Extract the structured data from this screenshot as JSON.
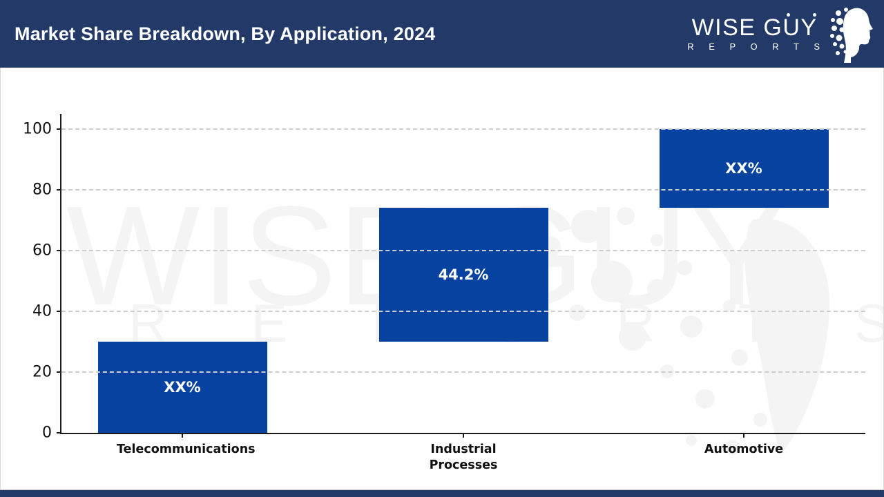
{
  "header": {
    "title": "Market Share Breakdown, By Application, 2024",
    "logo": {
      "primary": "WISE GUY",
      "secondary": "R E P O R T S"
    }
  },
  "watermark": {
    "primary": "WISE GUY",
    "secondary": "R E P O R T S"
  },
  "colors": {
    "header_bg": "#233a68",
    "footer_bg": "#233a68",
    "bar": "#0643a0",
    "grid": "#cdcdcd",
    "axis": "#1a1a1a",
    "value_label": "#ffffff",
    "watermark": "#f4f4f4"
  },
  "chart_data": {
    "type": "bar",
    "subtype": "floating-segment-waterfall",
    "title": "Market Share Breakdown, By Application, 2024",
    "categories": [
      "Telecommunications",
      "Industrial Processes",
      "Automotive"
    ],
    "segments": [
      {
        "category": "Telecommunications",
        "start": 0,
        "end": 30,
        "label": "XX%"
      },
      {
        "category": "Industrial Processes",
        "start": 30,
        "end": 74.2,
        "label": "44.2%"
      },
      {
        "category": "Automotive",
        "start": 74.2,
        "end": 100,
        "label": "XX%"
      }
    ],
    "xlabel": "",
    "ylabel": "",
    "ylim": [
      0,
      100
    ],
    "yticks": [
      0,
      20,
      40,
      60,
      80,
      100
    ],
    "grid": "horizontal dashed, drawn over bars",
    "legend": "none",
    "bar_color": "#0643a0",
    "value_label_color": "#ffffff"
  }
}
